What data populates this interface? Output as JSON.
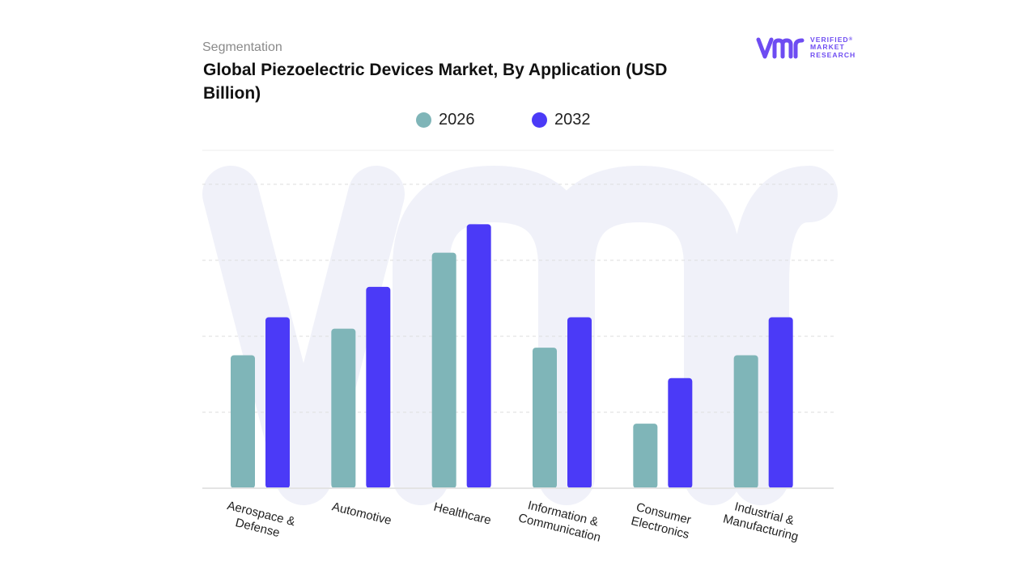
{
  "header": {
    "eyebrow": "Segmentation",
    "title": "Global Piezoelectric Devices Market, By Application (USD Billion)"
  },
  "logo": {
    "mark": "vmr",
    "lines": [
      "VERIFIED",
      "MARKET",
      "RESEARCH"
    ],
    "registered_symbol": "®"
  },
  "colors": {
    "series_2026": "#7fb5b8",
    "series_2032": "#4b3af7",
    "gridline": "#dedede",
    "baseline": "#e4e4e4",
    "watermark": "#eef0f8",
    "brand": "#6e4cf2"
  },
  "chart_data": {
    "type": "bar",
    "title": "Global Piezoelectric Devices Market, By Application (USD Billion)",
    "categories": [
      [
        "Aerospace &",
        "Defense"
      ],
      [
        "Automotive"
      ],
      [
        "Healthcare"
      ],
      [
        "Information &",
        "Communication"
      ],
      [
        "Consumer",
        "Electronics"
      ],
      [
        "Industrial &",
        "Manufacturing"
      ]
    ],
    "series": [
      {
        "name": "2026",
        "values": [
          3.5,
          4.2,
          6.2,
          3.7,
          1.7,
          3.5
        ]
      },
      {
        "name": "2032",
        "values": [
          4.5,
          5.3,
          6.95,
          4.5,
          2.9,
          4.5
        ]
      }
    ],
    "ylim": [
      0,
      8
    ],
    "grid": true,
    "legend_position": "top-center",
    "tick_labels_rotated": true
  }
}
